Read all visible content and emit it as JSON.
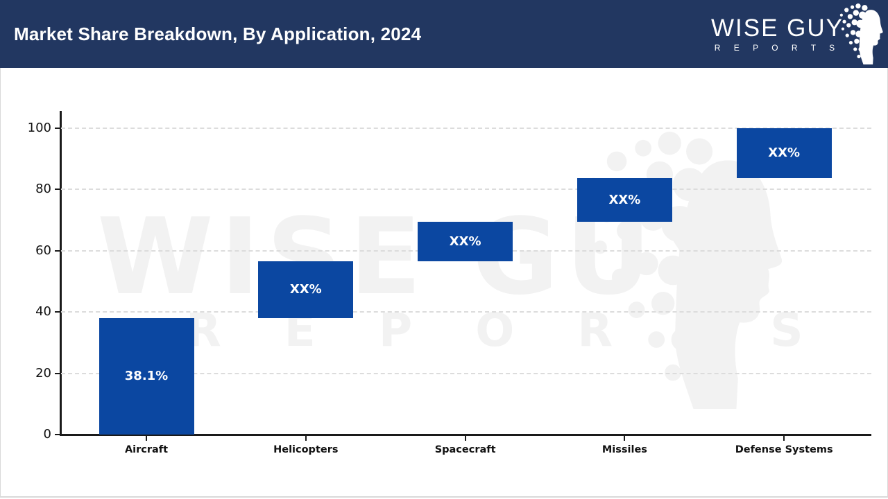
{
  "header": {
    "title": "Market Share Breakdown, By Application, 2024",
    "logo": {
      "line1": "WISE GUY",
      "line2": "R E P O R T S"
    }
  },
  "watermark": {
    "line1": "WISE GUY",
    "line2": "R E P O R T S"
  },
  "colors": {
    "header_bg": "#223761",
    "bar": "#0b47a1",
    "axis": "#1a1a1a",
    "gridline": "#dcdcdc",
    "watermark": "#f2f2f2",
    "label_on_bar": "#ffffff"
  },
  "chart_data": {
    "type": "bar",
    "subtype": "waterfall",
    "title": "Market Share Breakdown, By Application, 2024",
    "categories": [
      "Aircraft",
      "Helicopters",
      "Spacecraft",
      "Missiles",
      "Defense Systems"
    ],
    "segments": [
      {
        "category": "Aircraft",
        "start": 0,
        "end": 38.1,
        "label": "38.1%"
      },
      {
        "category": "Helicopters",
        "start": 38.1,
        "end": 56.5,
        "label": "XX%"
      },
      {
        "category": "Spacecraft",
        "start": 56.5,
        "end": 69.5,
        "label": "XX%"
      },
      {
        "category": "Missiles",
        "start": 69.5,
        "end": 83.6,
        "label": "XX%"
      },
      {
        "category": "Defense Systems",
        "start": 83.6,
        "end": 100.0,
        "label": "XX%"
      }
    ],
    "values_displayed": [
      "38.1%",
      "XX%",
      "XX%",
      "XX%",
      "XX%"
    ],
    "xlabel": "",
    "ylabel": "",
    "yticks": [
      0,
      20,
      40,
      60,
      80,
      100
    ],
    "ylim": [
      0,
      105
    ],
    "grid": "horizontal-dashed",
    "legend": "none",
    "bar_color": "#0b47a1"
  }
}
